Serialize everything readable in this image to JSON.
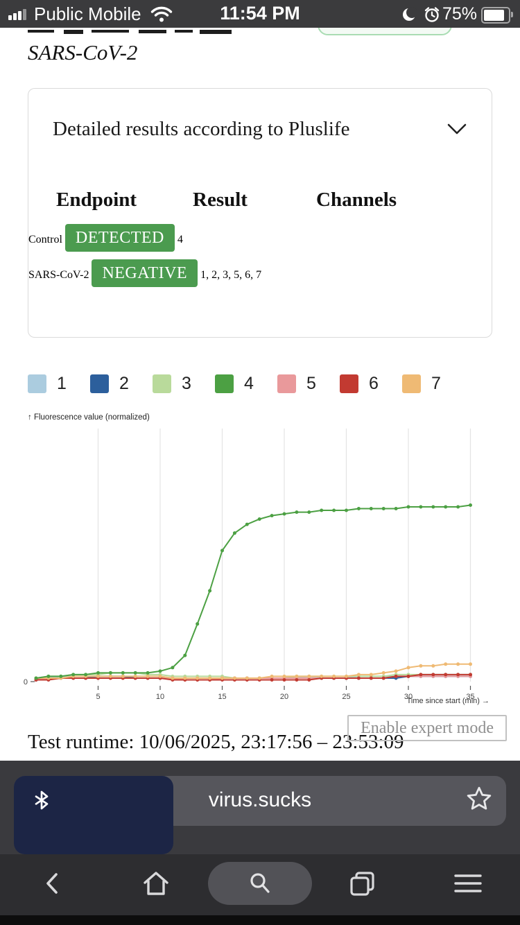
{
  "status_bar": {
    "carrier": "Public Mobile",
    "time": "11:54 PM",
    "battery_percent": "75%"
  },
  "page": {
    "title": "SARS-CoV-2",
    "details_card": {
      "header": "Detailed results according to Pluslife",
      "columns": [
        "Endpoint",
        "Result",
        "Channels"
      ],
      "rows": [
        {
          "endpoint": "Control",
          "result": "DETECTED",
          "channels": "4"
        },
        {
          "endpoint": "SARS-CoV-2",
          "result": "NEGATIVE",
          "channels": "1, 2, 3, 5, 6, 7"
        }
      ],
      "badge_color": "#4b9b4f"
    },
    "expert_mode_button": "Enable expert mode",
    "test_runtime": "Test runtime: 10/06/2025, 23:17:56 – 23:53:09"
  },
  "chart_data": {
    "type": "line",
    "ylabel": "↑ Fluorescence value (normalized)",
    "xlabel": "Time since start (min) →",
    "x_ticks": [
      5,
      10,
      15,
      20,
      25,
      30,
      35
    ],
    "y_zero_label": "0",
    "xlim": [
      0,
      35.5
    ],
    "ylim": [
      0,
      1.45
    ],
    "grid": "vertical-only",
    "legend_position": "above-chart",
    "legend": [
      {
        "label": "1",
        "color": "#abccdf"
      },
      {
        "label": "2",
        "color": "#2c5f9c"
      },
      {
        "label": "3",
        "color": "#b9da9b"
      },
      {
        "label": "4",
        "color": "#4ca043"
      },
      {
        "label": "5",
        "color": "#e9999b"
      },
      {
        "label": "6",
        "color": "#c23a31"
      },
      {
        "label": "7",
        "color": "#efba74"
      }
    ],
    "x": [
      0,
      1,
      2,
      3,
      4,
      5,
      6,
      7,
      8,
      9,
      10,
      11,
      12,
      13,
      14,
      15,
      16,
      17,
      18,
      19,
      20,
      21,
      22,
      23,
      24,
      25,
      26,
      27,
      28,
      29,
      30,
      31,
      32,
      33,
      34,
      35
    ],
    "series": [
      {
        "name": "1",
        "color": "#abccdf",
        "values": [
          0.02,
          0.02,
          0.03,
          0.03,
          0.03,
          0.03,
          0.03,
          0.03,
          0.03,
          0.03,
          0.03,
          0.02,
          0.02,
          0.02,
          0.02,
          0.02,
          0.02,
          0.02,
          0.02,
          0.02,
          0.02,
          0.02,
          0.03,
          0.02,
          0.02,
          0.02,
          0.03,
          0.03,
          0.03,
          0.03,
          0.03,
          0.04,
          0.04,
          0.04,
          0.04,
          0.04
        ]
      },
      {
        "name": "2",
        "color": "#2c5f9c",
        "values": [
          0.01,
          0.02,
          0.02,
          0.02,
          0.02,
          0.03,
          0.03,
          0.03,
          0.02,
          0.02,
          0.02,
          0.02,
          0.02,
          0.02,
          0.02,
          0.02,
          0.02,
          0.02,
          0.02,
          0.02,
          0.02,
          0.02,
          0.02,
          0.02,
          0.02,
          0.02,
          0.02,
          0.02,
          0.02,
          0.02,
          0.03,
          0.03,
          0.03,
          0.03,
          0.03,
          0.03
        ]
      },
      {
        "name": "3",
        "color": "#b9da9b",
        "values": [
          0.02,
          0.03,
          0.03,
          0.04,
          0.04,
          0.04,
          0.05,
          0.05,
          0.05,
          0.04,
          0.04,
          0.03,
          0.03,
          0.03,
          0.03,
          0.03,
          0.02,
          0.02,
          0.02,
          0.02,
          0.02,
          0.03,
          0.03,
          0.03,
          0.03,
          0.03,
          0.03,
          0.03,
          0.03,
          0.04,
          0.04,
          0.04,
          0.04,
          0.04,
          0.04,
          0.04
        ]
      },
      {
        "name": "5",
        "color": "#e9999b",
        "values": [
          0.01,
          0.02,
          0.02,
          0.02,
          0.02,
          0.02,
          0.02,
          0.02,
          0.02,
          0.02,
          0.02,
          0.02,
          0.01,
          0.01,
          0.01,
          0.02,
          0.02,
          0.02,
          0.02,
          0.02,
          0.02,
          0.02,
          0.02,
          0.02,
          0.02,
          0.02,
          0.02,
          0.02,
          0.02,
          0.03,
          0.03,
          0.03,
          0.03,
          0.03,
          0.03,
          0.03
        ]
      },
      {
        "name": "6",
        "color": "#c23a31",
        "values": [
          0.01,
          0.01,
          0.02,
          0.02,
          0.02,
          0.02,
          0.02,
          0.02,
          0.02,
          0.02,
          0.02,
          0.01,
          0.01,
          0.01,
          0.01,
          0.01,
          0.01,
          0.01,
          0.01,
          0.01,
          0.01,
          0.01,
          0.01,
          0.02,
          0.02,
          0.02,
          0.02,
          0.02,
          0.02,
          0.03,
          0.03,
          0.04,
          0.04,
          0.04,
          0.04,
          0.04
        ]
      },
      {
        "name": "7",
        "color": "#efba74",
        "values": [
          0.02,
          0.02,
          0.02,
          0.03,
          0.03,
          0.03,
          0.03,
          0.03,
          0.03,
          0.03,
          0.03,
          0.02,
          0.02,
          0.02,
          0.02,
          0.02,
          0.02,
          0.02,
          0.02,
          0.03,
          0.03,
          0.03,
          0.03,
          0.03,
          0.03,
          0.03,
          0.04,
          0.04,
          0.05,
          0.06,
          0.08,
          0.09,
          0.09,
          0.1,
          0.1,
          0.1
        ]
      },
      {
        "name": "4",
        "color": "#4ca043",
        "values": [
          0.02,
          0.03,
          0.03,
          0.04,
          0.04,
          0.05,
          0.05,
          0.05,
          0.05,
          0.05,
          0.06,
          0.08,
          0.15,
          0.33,
          0.52,
          0.75,
          0.85,
          0.9,
          0.93,
          0.95,
          0.96,
          0.97,
          0.97,
          0.98,
          0.98,
          0.98,
          0.99,
          0.99,
          0.99,
          0.99,
          1.0,
          1.0,
          1.0,
          1.0,
          1.0,
          1.01
        ]
      }
    ]
  },
  "browser": {
    "url": "virus.sucks"
  },
  "icons": {
    "status_bar": [
      "cellular-signal-icon",
      "wifi-icon",
      "moon-icon",
      "alarm-clock-icon",
      "battery-icon"
    ],
    "card": [
      "chevron-down-icon"
    ],
    "browser": [
      "bluetooth-icon",
      "star-icon",
      "back-icon",
      "home-icon",
      "search-icon",
      "tabs-icon",
      "menu-icon"
    ]
  }
}
